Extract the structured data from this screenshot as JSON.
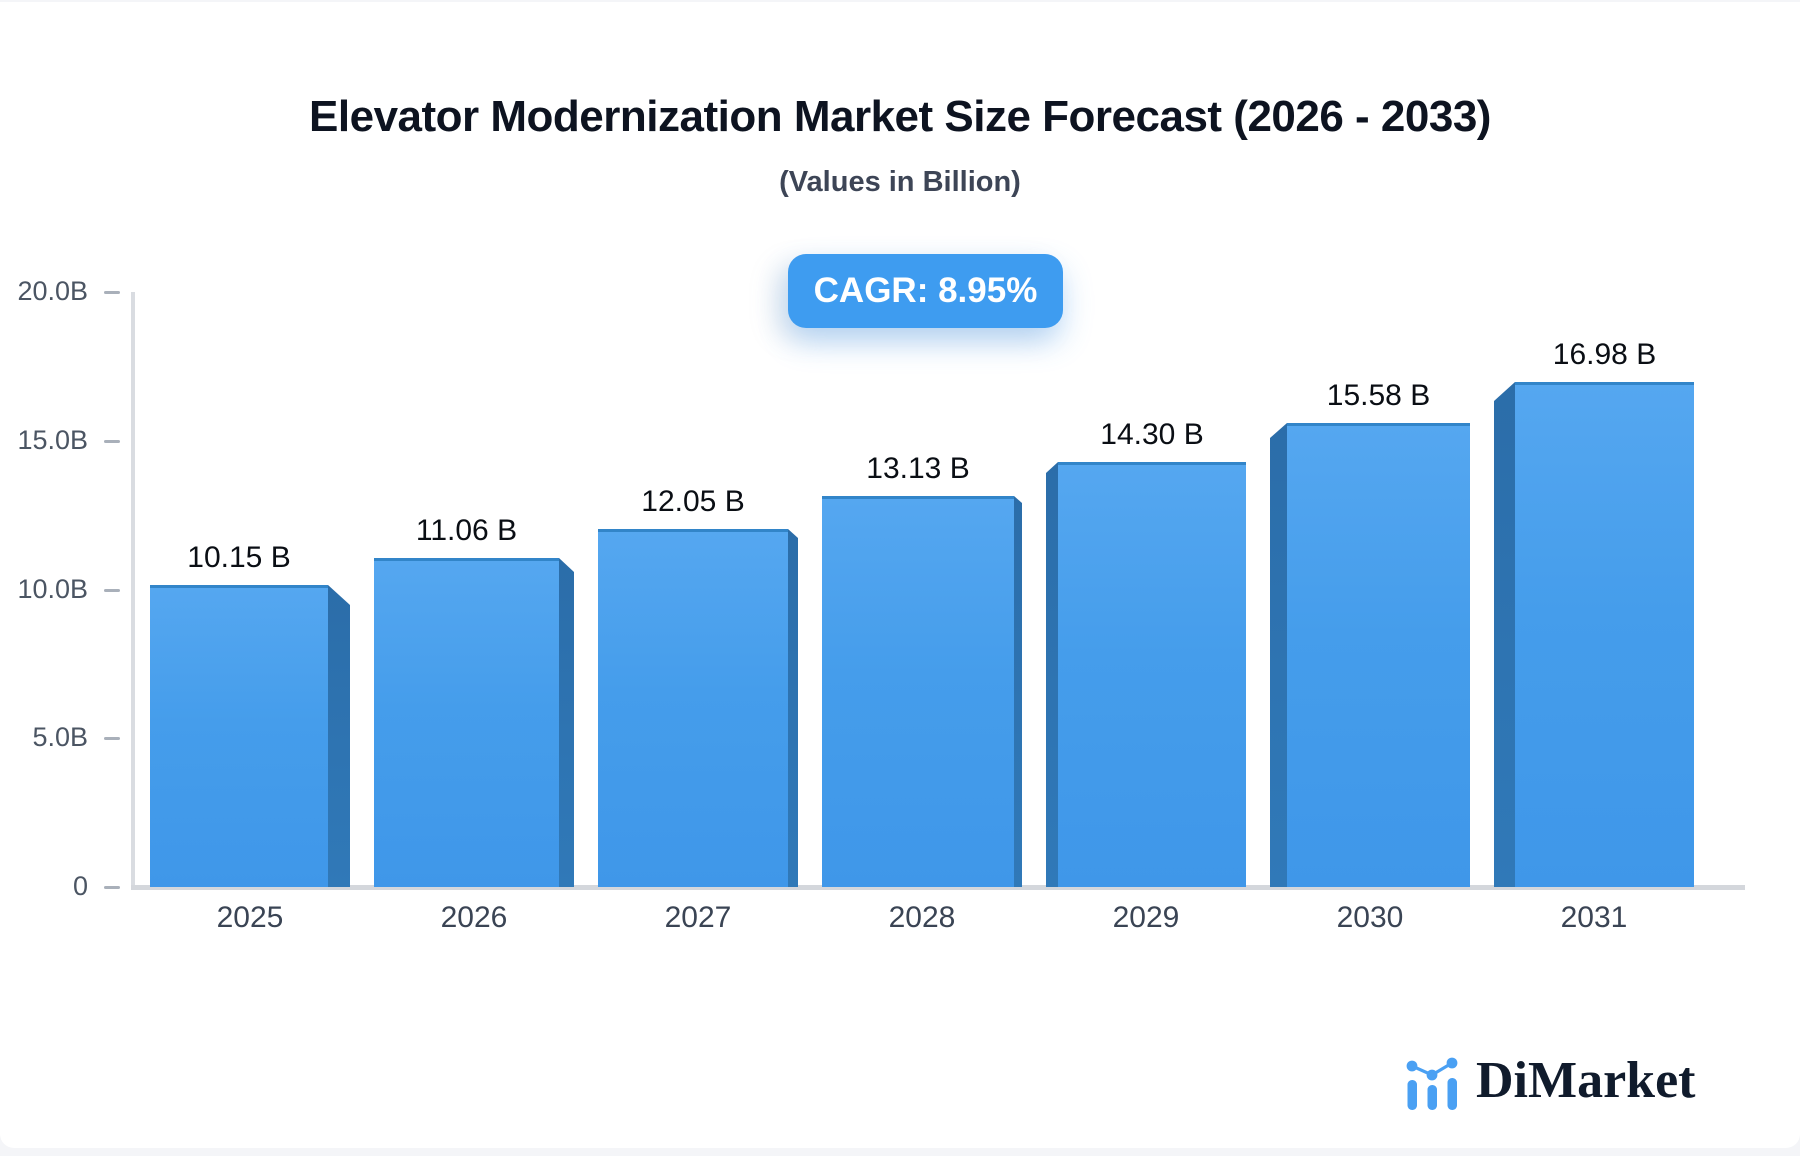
{
  "page": {
    "background": "#f4f5f8",
    "card_background": "#ffffff"
  },
  "header": {
    "title": "Elevator Modernization Market Size Forecast (2026 - 2033)",
    "subtitle": "(Values in Billion)"
  },
  "badge": {
    "label": "CAGR: 8.95%",
    "background": "#3e9cf0",
    "text_color": "#ffffff"
  },
  "chart_data": {
    "type": "bar",
    "title": "Elevator Modernization Market Size Forecast (2026 - 2033)",
    "subtitle": "(Values in Billion)",
    "cagr_label": "CAGR: 8.95%",
    "categories": [
      "2025",
      "2026",
      "2027",
      "2028",
      "2029",
      "2030",
      "2031"
    ],
    "values": [
      10.15,
      11.06,
      12.05,
      13.13,
      14.3,
      15.58,
      16.98
    ],
    "value_labels": [
      "10.15 B",
      "11.06 B",
      "12.05 B",
      "13.13 B",
      "14.30 B",
      "15.58 B",
      "16.98 B"
    ],
    "unit": "Billion",
    "ylim": [
      0,
      20
    ],
    "yticks": [
      {
        "value": 20,
        "label": "20.0B"
      },
      {
        "value": 15,
        "label": "15.0B"
      },
      {
        "value": 10,
        "label": "10.0B"
      },
      {
        "value": 5,
        "label": "5.0B"
      },
      {
        "value": 0,
        "label": "0"
      }
    ],
    "grid": false,
    "legend": "none",
    "bar_3d_sides": [
      {
        "side": "right",
        "width": 22
      },
      {
        "side": "right",
        "width": 15
      },
      {
        "side": "right",
        "width": 10
      },
      {
        "side": "right",
        "width": 8
      },
      {
        "side": "left",
        "width": 12
      },
      {
        "side": "left",
        "width": 17
      },
      {
        "side": "left",
        "width": 21
      }
    ],
    "colors": {
      "bar_face_top": "#55a7f0",
      "bar_face_bottom": "#3f97e9",
      "bar_top_edge": "#3285c9",
      "bar_side_face": "#2e74b2",
      "axis_line": "#d9dce1",
      "tick_dash": "#a9b0ba",
      "tick_text": "#4b5563",
      "category_text": "#3a4454",
      "value_text": "#0a0e14"
    }
  },
  "logo": {
    "text": "DiMarket",
    "icon": "mini-bar-line-chart-icon",
    "icon_color": "#4aa0f3",
    "text_color": "#101b2c"
  }
}
